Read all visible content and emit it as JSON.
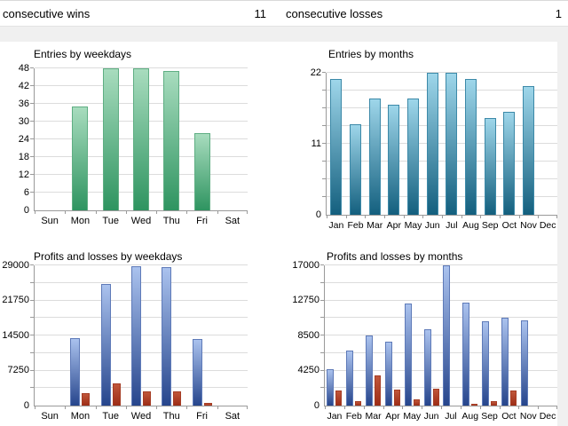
{
  "header": {
    "left_label": "consecutive wins",
    "left_value": "11",
    "right_label": "consecutive losses",
    "right_value": "1"
  },
  "colors": {
    "page_bg": "#f0f0f0",
    "panel_bg": "#ffffff",
    "axis": "#9a9a9a",
    "grid": "#dcdcdc",
    "series": {
      "green": {
        "top": "#a8dcbe",
        "bottom": "#2e9460",
        "border": "#5fae83"
      },
      "teal": {
        "top": "#9ed6ea",
        "bottom": "#135f7e",
        "border": "#3c89a8"
      },
      "blue": {
        "top": "#aac2ee",
        "bottom": "#26458c",
        "border": "#5e7ab8"
      },
      "red": {
        "top": "#c0563a",
        "bottom": "#9c2c16",
        "border": "#a53c24"
      }
    }
  },
  "chart_data": [
    {
      "type": "bar",
      "title": "Entries by weekdays",
      "categories": [
        "Sun",
        "Mon",
        "Tue",
        "Wed",
        "Thu",
        "Fri",
        "Sat"
      ],
      "series": [
        {
          "name": "entries",
          "color": "green",
          "values": [
            0,
            35,
            48,
            48,
            47,
            26,
            0
          ]
        }
      ],
      "ylim": [
        0,
        48
      ],
      "ytick_labels": [
        0,
        6,
        12,
        18,
        24,
        30,
        36,
        42,
        48
      ],
      "grid_step": 6,
      "legend": false
    },
    {
      "type": "bar",
      "title": "Entries by months",
      "categories": [
        "Jan",
        "Feb",
        "Mar",
        "Apr",
        "May",
        "Jun",
        "Jul",
        "Aug",
        "Sep",
        "Oct",
        "Nov",
        "Dec"
      ],
      "series": [
        {
          "name": "entries",
          "color": "teal",
          "values": [
            21,
            14,
            18,
            17,
            18,
            22,
            22,
            21,
            15,
            16,
            20,
            0
          ]
        }
      ],
      "ylim": [
        0,
        22
      ],
      "ytick_labels": [
        0,
        11,
        22
      ],
      "grid_step": 2.75,
      "legend": false
    },
    {
      "type": "bar",
      "title": "Profits and losses by weekdays",
      "categories": [
        "Sun",
        "Mon",
        "Tue",
        "Wed",
        "Thu",
        "Fri",
        "Sat"
      ],
      "series": [
        {
          "name": "profit",
          "color": "blue",
          "values": [
            0,
            14000,
            25100,
            28900,
            28600,
            13800,
            0
          ]
        },
        {
          "name": "loss",
          "color": "red",
          "values": [
            0,
            2600,
            4650,
            3000,
            3000,
            600,
            0
          ]
        }
      ],
      "ylim": [
        0,
        29000
      ],
      "ytick_labels": [
        0,
        7250,
        14500,
        21750,
        29000
      ],
      "grid_step": 3625,
      "legend": false
    },
    {
      "type": "bar",
      "title": "Profits and losses by months",
      "categories": [
        "Jan",
        "Feb",
        "Mar",
        "Apr",
        "May",
        "Jun",
        "Jul",
        "Aug",
        "Sep",
        "Oct",
        "Nov",
        "Dec"
      ],
      "series": [
        {
          "name": "profit",
          "color": "blue",
          "values": [
            4400,
            6700,
            8500,
            7700,
            12400,
            9300,
            17000,
            12500,
            10200,
            10700,
            10300,
            0
          ]
        },
        {
          "name": "loss",
          "color": "red",
          "values": [
            1800,
            500,
            3700,
            1900,
            800,
            2000,
            0,
            200,
            500,
            1800,
            0,
            0
          ]
        }
      ],
      "ylim": [
        0,
        17000
      ],
      "ytick_labels": [
        0,
        4250,
        8500,
        12750,
        17000
      ],
      "grid_step": 2125,
      "legend": false
    }
  ]
}
